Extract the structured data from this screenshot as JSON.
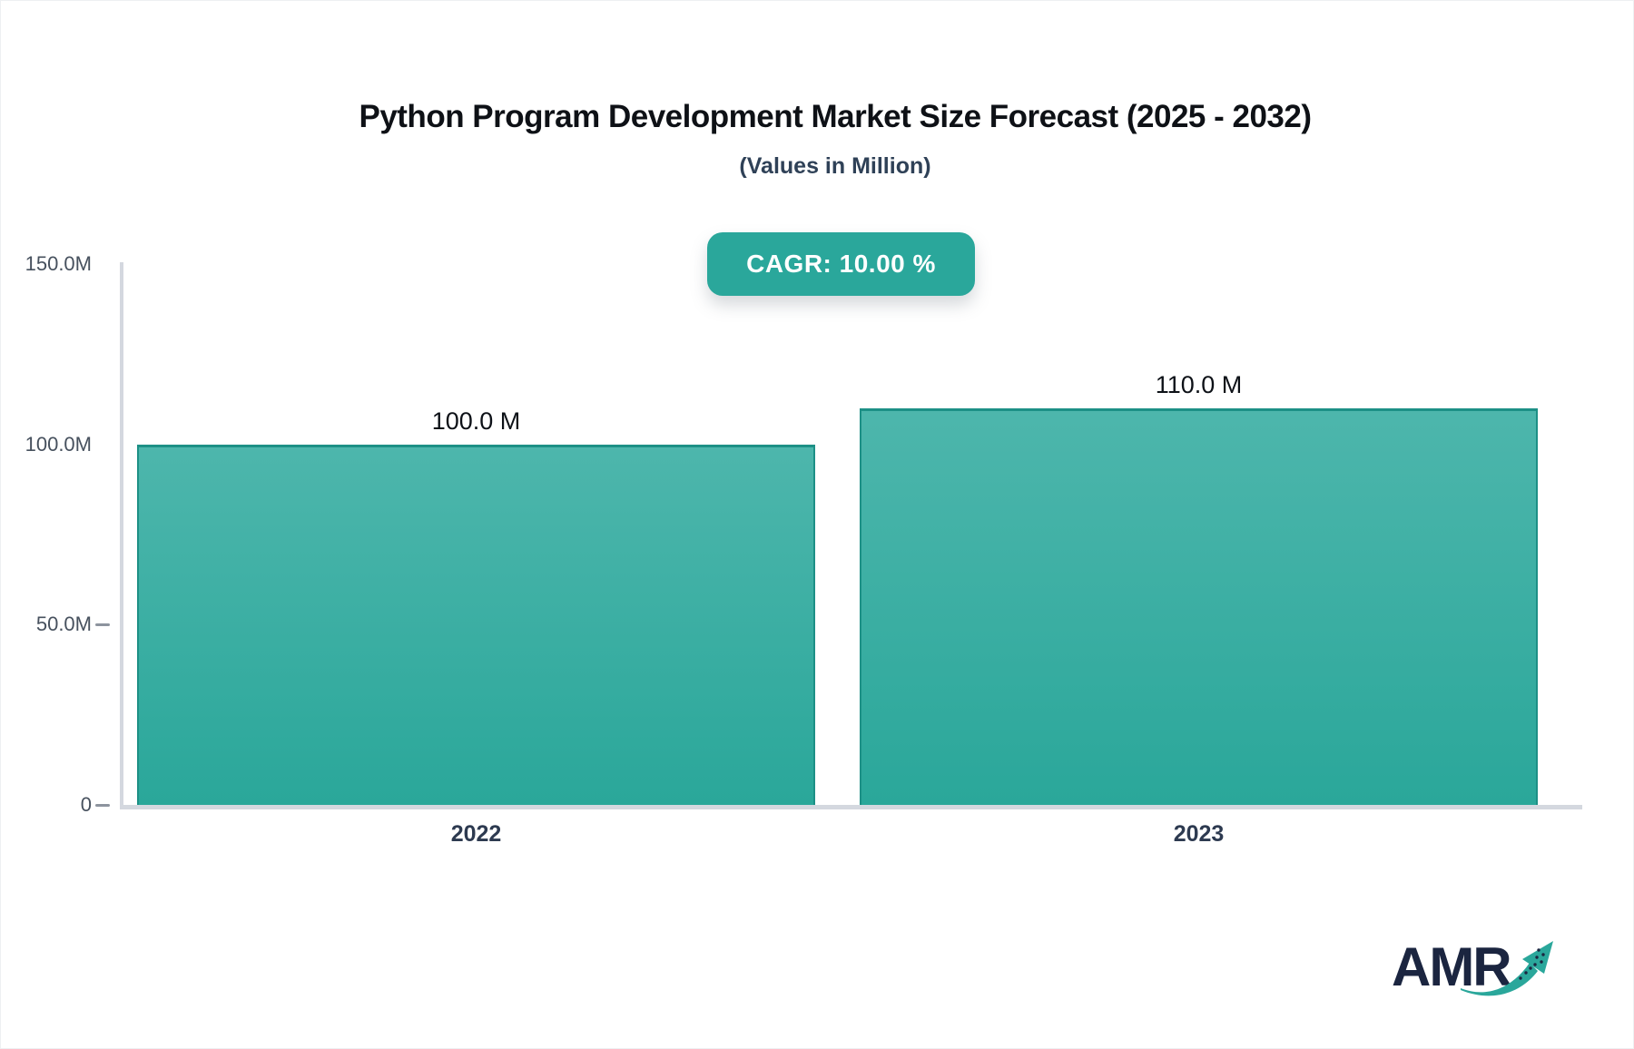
{
  "header": {
    "title": "Python Program Development Market Size Forecast (2025 - 2032)",
    "subtitle": "(Values in Million)"
  },
  "cagr_badge": {
    "label": "CAGR: 10.00 %"
  },
  "chart_data": {
    "type": "bar",
    "title": "Python Program Development Market Size Forecast (2025 - 2032)",
    "subtitle": "(Values in Million)",
    "unit": "Million",
    "cagr_percent": "10.00 %",
    "categories": [
      "2022",
      "2023"
    ],
    "values": [
      100.0,
      110.0
    ],
    "value_labels": [
      "100.0 M",
      "110.0 M"
    ],
    "ylim": [
      0,
      150
    ],
    "yticks": [
      {
        "label": "150.0M",
        "value": 150,
        "dash": false
      },
      {
        "label": "100.0M",
        "value": 100,
        "dash": false
      },
      {
        "label": "50.0M",
        "value": 50,
        "dash": true
      },
      {
        "label": "0",
        "value": 0,
        "dash": true
      }
    ],
    "xlabel": "",
    "ylabel": "",
    "grid": false,
    "legend": false
  },
  "branding": {
    "logo_text": "AMR"
  },
  "colors": {
    "badge_bg": "#2aa79b",
    "badge_text": "#ffffff",
    "bar_top": "#4db6ac",
    "bar_bottom": "#2aa79a",
    "bar_border": "#1d9086",
    "axis_line": "#d4d8df",
    "tick_color": "#8d949e",
    "ylabel_color": "#47515e",
    "xlabel_color": "#2d3a50",
    "value_color": "#0d1117",
    "logo_color": "#1b2540",
    "logo_arrow": "#2aa79b"
  }
}
